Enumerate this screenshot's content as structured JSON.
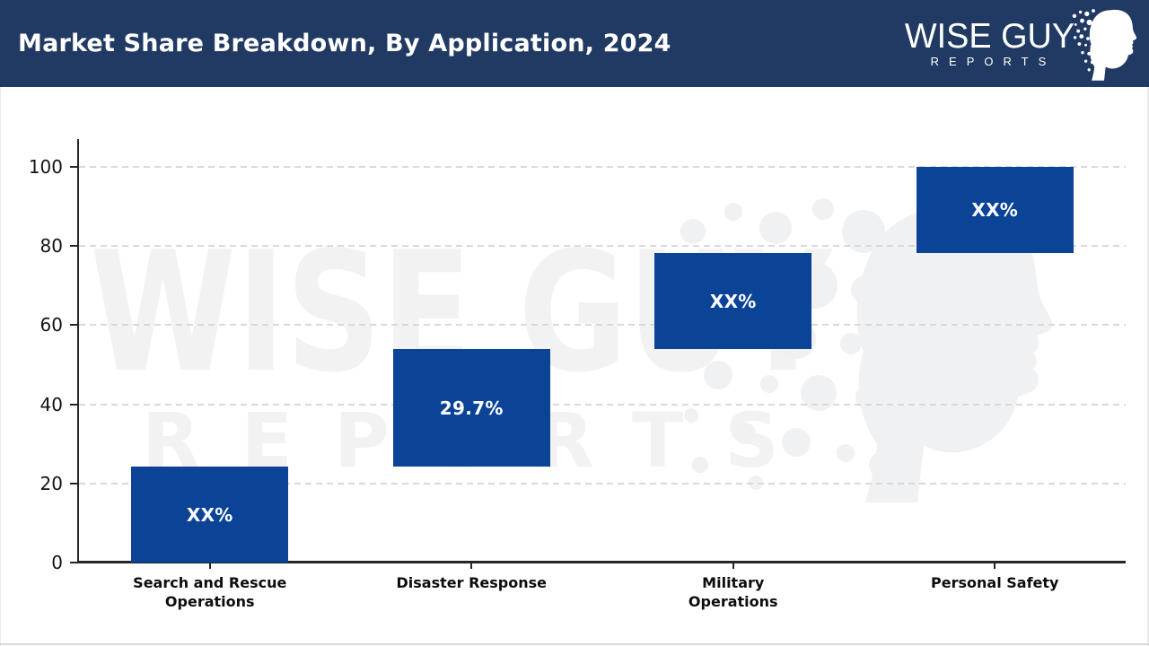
{
  "header": {
    "title": "Market Share Breakdown, By Application, 2024",
    "logo": {
      "name": "WISE GUY",
      "sub": "REPORTS"
    }
  },
  "watermark": {
    "line1": "WISE GUY",
    "line2": "REPORTS"
  },
  "chart_data": {
    "type": "bar",
    "variant": "floating-waterfall",
    "title": "Market Share Breakdown, By Application, 2024",
    "categories": [
      "Search and Rescue Operations",
      "Disaster Response",
      "Military Operations",
      "Personal Safety"
    ],
    "category_lines": [
      [
        "Search and Rescue",
        "Operations"
      ],
      [
        "Disaster Response"
      ],
      [
        "Military",
        "Operations"
      ],
      [
        "Personal Safety"
      ]
    ],
    "bars": [
      {
        "label": "XX%",
        "start": 0,
        "end": 24.2
      },
      {
        "label": "29.7%",
        "start": 24.2,
        "end": 53.9,
        "value": 29.7
      },
      {
        "label": "XX%",
        "start": 53.9,
        "end": 78.2
      },
      {
        "label": "XX%",
        "start": 78.2,
        "end": 100
      }
    ],
    "yticks": [
      0,
      20,
      40,
      60,
      80,
      100
    ],
    "ylim": [
      0,
      107
    ],
    "xlabel": "",
    "ylabel": "",
    "legend": "none",
    "grid": {
      "axis": "y",
      "style": "dashed"
    },
    "bar_color": "#0b4397",
    "bar_label_color": "#ffffff"
  },
  "colors": {
    "header_bg": "#213a64",
    "header_text": "#ffffff",
    "bar": "#0b4397",
    "grid": "#d9d9d9",
    "axis": "#262626",
    "watermark": "#f2f2f2"
  }
}
